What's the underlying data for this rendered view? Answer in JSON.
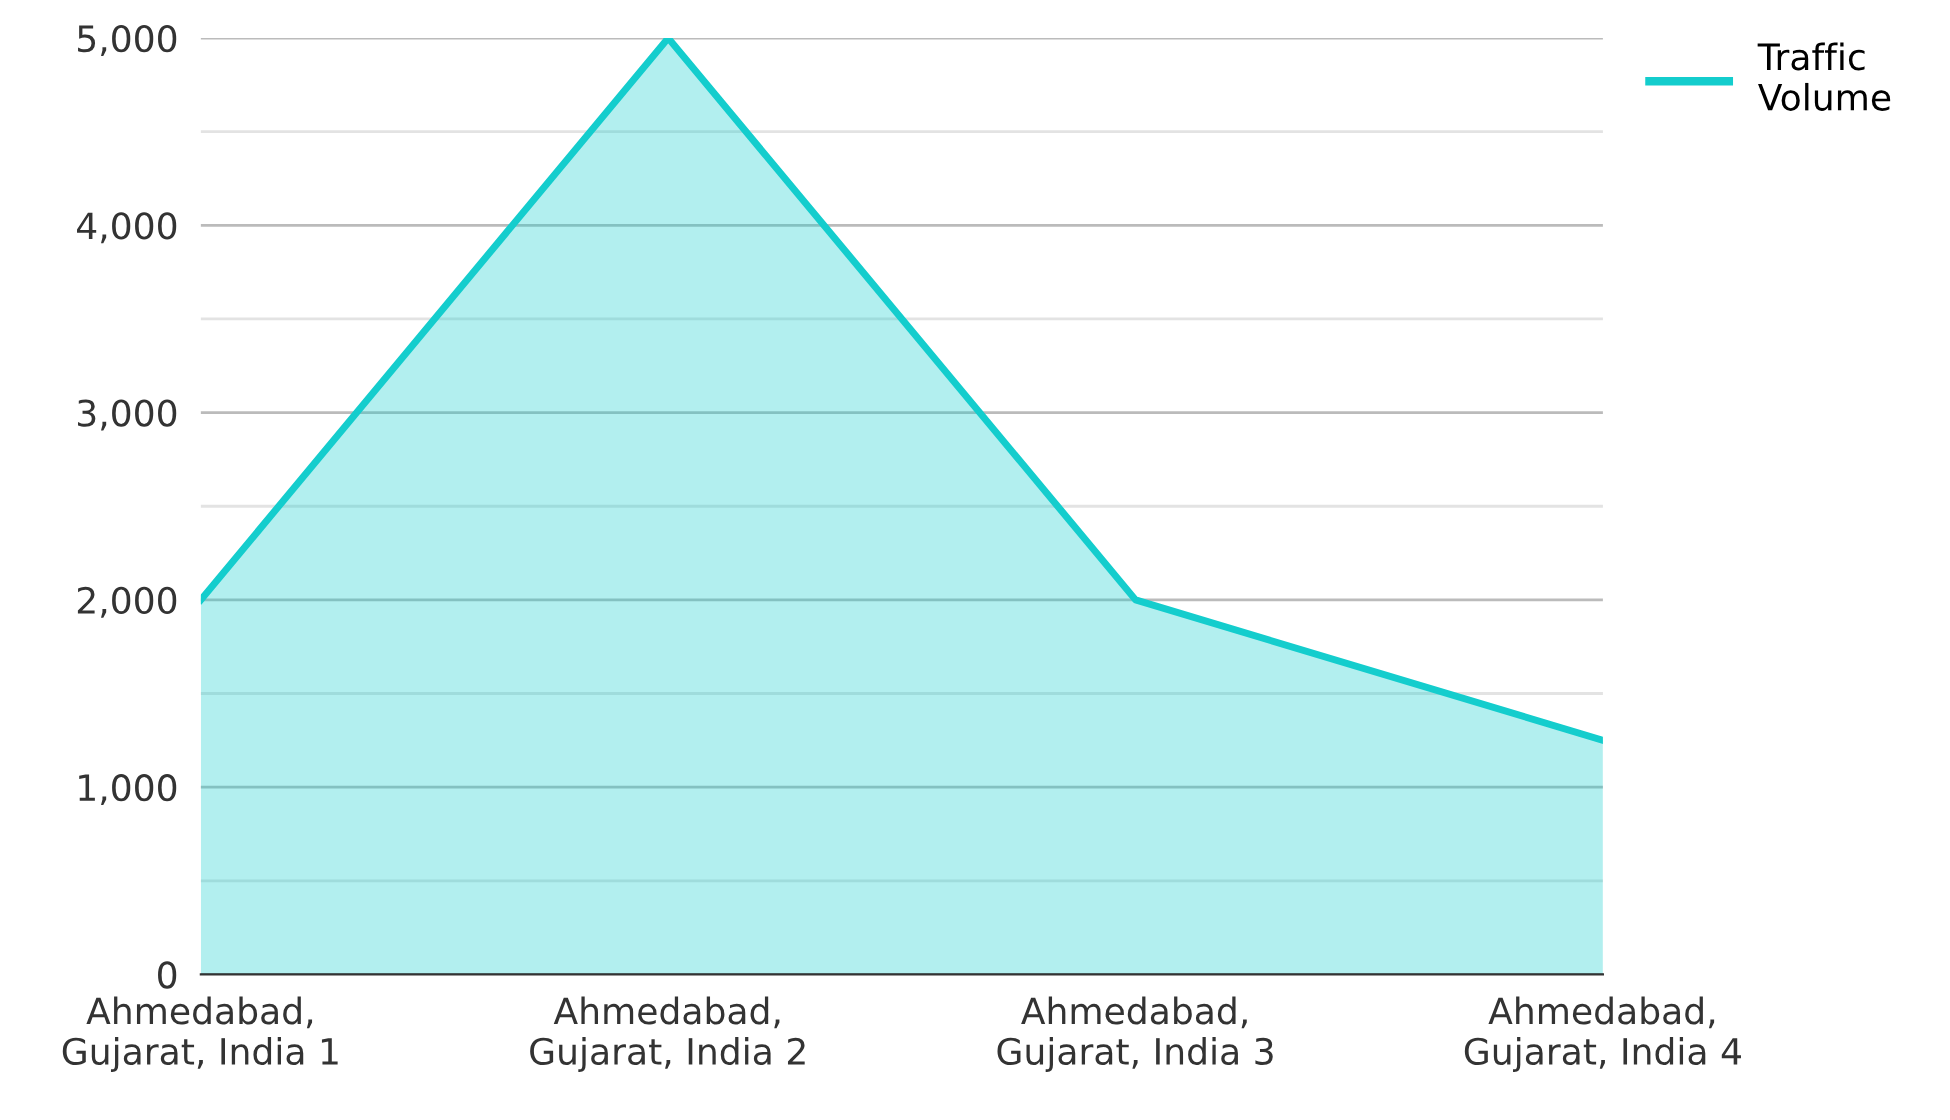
{
  "chart_data": {
    "type": "area",
    "categories": [
      "Ahmedabad,\nGujarat, India 1",
      "Ahmedabad,\nGujarat, India 2",
      "Ahmedabad,\nGujarat, India 3",
      "Ahmedabad,\nGujarat, India 4"
    ],
    "series": [
      {
        "name": "Traffic\nVolume",
        "color": "#14cdcd",
        "values": [
          2000,
          5000,
          2000,
          1250
        ]
      }
    ],
    "ylim": [
      0,
      5000
    ],
    "yticks": [
      {
        "value": 0,
        "label": "0"
      },
      {
        "value": 500,
        "label": null
      },
      {
        "value": 1000,
        "label": "1,000"
      },
      {
        "value": 1500,
        "label": null
      },
      {
        "value": 2000,
        "label": "2,000"
      },
      {
        "value": 2500,
        "label": null
      },
      {
        "value": 3000,
        "label": "3,000"
      },
      {
        "value": 3500,
        "label": null
      },
      {
        "value": 4000,
        "label": "4,000"
      },
      {
        "value": 4500,
        "label": null
      },
      {
        "value": 5000,
        "label": "5,000"
      }
    ],
    "grid": "y",
    "legend": "top right"
  }
}
